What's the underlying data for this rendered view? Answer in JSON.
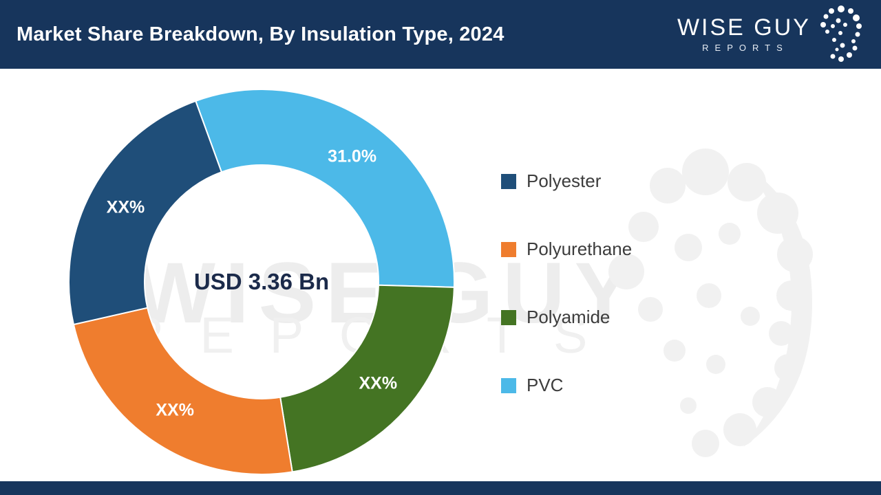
{
  "header": {
    "title": "Market Share Breakdown, By Insulation Type, 2024",
    "brand_line1": "WISE GUY",
    "brand_line2": "REPORTS"
  },
  "watermark": {
    "line1": "WISE GUY",
    "line2": "REPORTS"
  },
  "colors": {
    "header_bar": "#17355c",
    "polyester": "#1f4e79",
    "polyurethane": "#ef7d2e",
    "polyamide": "#447423",
    "pvc": "#4cb9e8"
  },
  "chart_data": {
    "type": "pie",
    "subtype": "donut",
    "title": "Market Share Breakdown, By Insulation Type, 2024",
    "center_label": "USD 3.36 Bn",
    "start_angle_deg": -20,
    "legend_position": "right",
    "segments": [
      {
        "name": "PVC",
        "label": "31.0%",
        "value": 31.0,
        "color": "#4cb9e8"
      },
      {
        "name": "Polyamide",
        "label": "XX%",
        "value": 22.0,
        "color": "#447423"
      },
      {
        "name": "Polyurethane",
        "label": "XX%",
        "value": 24.0,
        "color": "#ef7d2e"
      },
      {
        "name": "Polyester",
        "label": "XX%",
        "value": 23.0,
        "color": "#1f4e79"
      }
    ]
  },
  "legend": {
    "items": [
      "Polyester",
      "Polyurethane",
      "Polyamide",
      "PVC"
    ]
  }
}
